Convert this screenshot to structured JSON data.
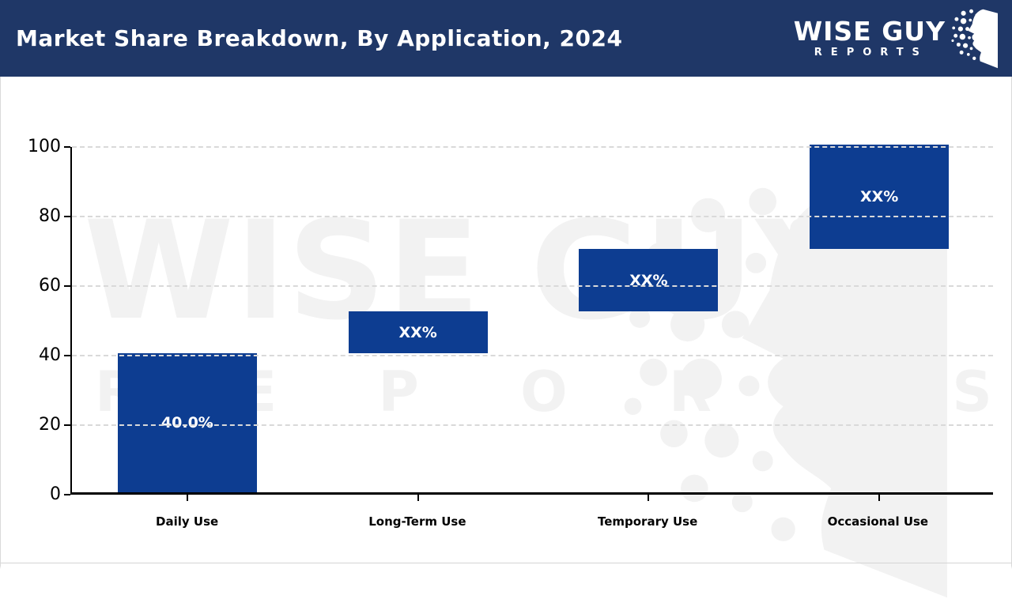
{
  "header": {
    "title": "Market Share Breakdown, By Application, 2024",
    "logo": {
      "line1": "WISE GUY",
      "line2": "REPORTS",
      "icon": "dotted-head-profile-icon"
    }
  },
  "watermark": {
    "line1": "WISE GUY",
    "line2": "R E P O R T S",
    "icon": "dotted-head-profile-icon"
  },
  "chart_data": {
    "type": "bar",
    "subtype": "waterfall",
    "title": "Market Share Breakdown, By Application, 2024",
    "categories": [
      "Daily Use",
      "Long-Term Use",
      "Temporary Use",
      "Occasional Use"
    ],
    "values": [
      40,
      12,
      18,
      30
    ],
    "segments": [
      {
        "category": "Daily Use",
        "start": 0,
        "end": 40,
        "label": "40.0%"
      },
      {
        "category": "Long-Term Use",
        "start": 40,
        "end": 52,
        "label": "XX%"
      },
      {
        "category": "Temporary Use",
        "start": 52,
        "end": 70,
        "label": "XX%"
      },
      {
        "category": "Occasional Use",
        "start": 70,
        "end": 100,
        "label": "XX%"
      }
    ],
    "xlabel": "",
    "ylabel": "",
    "ylim": [
      0,
      100
    ],
    "yticks": [
      0,
      20,
      40,
      60,
      80,
      100
    ],
    "grid": "horizontal-dashed",
    "legend": "none",
    "colors": {
      "bar": "#0d3d91",
      "bar_label": "#ffffff",
      "header_bg": "#1f3767",
      "grid": "#d9d9d9",
      "axis": "#000000",
      "watermark": "#f2f2f2"
    }
  }
}
